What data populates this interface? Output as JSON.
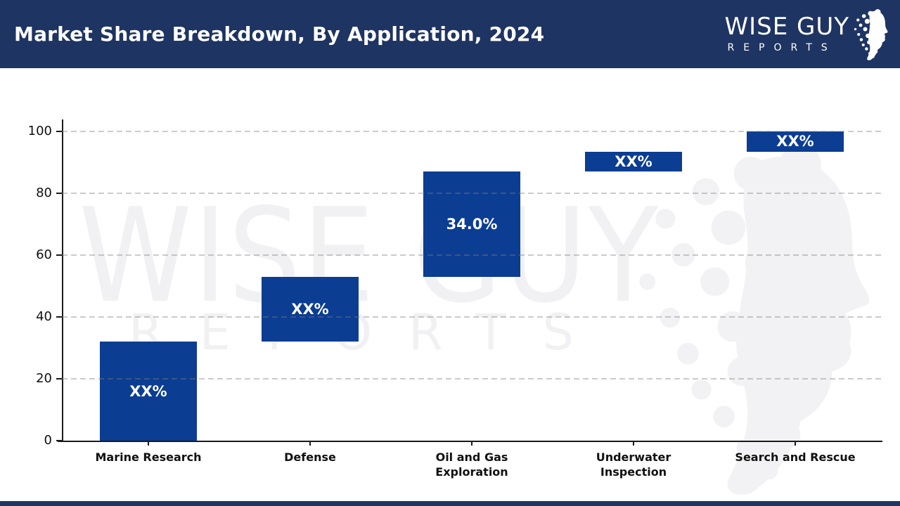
{
  "header": {
    "title": "Market Share Breakdown, By Application, 2024"
  },
  "logo": {
    "name": "WISE GUY",
    "tagline": "REPORTS"
  },
  "watermark": {
    "line1": "WISE GUY",
    "line2": "REPORTS"
  },
  "colors": {
    "header_bg": "#1e3462",
    "footer_bg": "#1e3462",
    "bar": "#0b3d92",
    "bar_label": "#ffffff",
    "axis": "#1a1a1a",
    "gridline": "#c9c9c9",
    "watermark": "#f1f1f3",
    "title_text": "#ffffff"
  },
  "chart_data": {
    "type": "bar",
    "subtype": "waterfall",
    "title": "Market Share Breakdown, By Application, 2024",
    "categories": [
      "Marine Research",
      "Defense",
      "Oil and Gas Exploration",
      "Underwater Inspection",
      "Search and Rescue"
    ],
    "segments": [
      {
        "category": "Marine Research",
        "start": 0,
        "end": 32,
        "label": "XX%"
      },
      {
        "category": "Defense",
        "start": 32,
        "end": 53,
        "label": "XX%"
      },
      {
        "category": "Oil and Gas Exploration",
        "start": 53,
        "end": 87,
        "label": "34.0%"
      },
      {
        "category": "Underwater Inspection",
        "start": 87,
        "end": 93.5,
        "label": "XX%"
      },
      {
        "category": "Search and Rescue",
        "start": 93.5,
        "end": 100,
        "label": "XX%"
      }
    ],
    "y_ticks": [
      0,
      20,
      40,
      60,
      80,
      100
    ],
    "ylim": [
      0,
      104
    ],
    "xlabel": "",
    "ylabel": "",
    "grid": "dashed-horizontal-above-bars",
    "legend": "none"
  }
}
